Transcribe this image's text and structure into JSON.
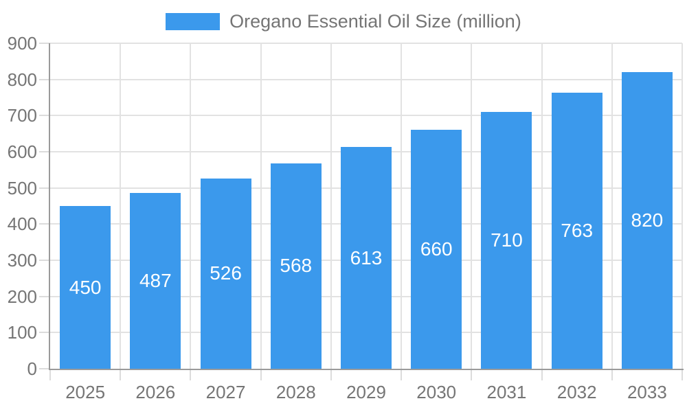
{
  "chart_data": {
    "type": "bar",
    "title": "Oregano Essential Oil Size (million)",
    "legend": "Oregano Essential Oil Size (million)",
    "legend_position": "top-center",
    "categories": [
      "2025",
      "2026",
      "2027",
      "2028",
      "2029",
      "2030",
      "2031",
      "2032",
      "2033"
    ],
    "values": [
      450,
      487,
      526,
      568,
      613,
      660,
      710,
      763,
      820
    ],
    "bar_labels_visible": true,
    "xlabel": "",
    "ylabel": "",
    "ylim": [
      0,
      900
    ],
    "ytick_step": 100,
    "grid": true,
    "colors": {
      "bar": "#3B99EC",
      "bar_label_text": "#ffffff",
      "axis_text": "#757575",
      "legend_text": "#757575",
      "gridline": "#e2e2e2",
      "tick": "#dcdcdc",
      "axis_line": "#9a9a9a",
      "background": "#ffffff"
    }
  }
}
